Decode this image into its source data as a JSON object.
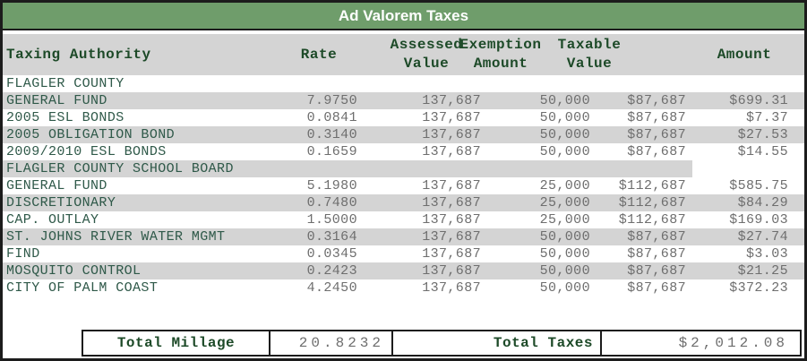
{
  "title": "Ad Valorem Taxes",
  "colors": {
    "title_bar_bg": "#6f9d6b",
    "shaded_row_bg": "#d4d4d4",
    "header_text": "#1d4a28",
    "authority_text": "#2f5949",
    "number_text": "#6e6e6e",
    "border": "#1c1c1c"
  },
  "table": {
    "headers": {
      "authority": "Taxing Authority",
      "rate": "Rate",
      "assessed_line1": "Assessed",
      "assessed_line2": "Value",
      "exemption_line1": "Exemption",
      "exemption_line2": "Amount",
      "taxable_line1": "Taxable",
      "taxable_line2": "Value",
      "amount": "Amount"
    },
    "rows": [
      {
        "type": "section",
        "authority": "FLAGLER COUNTY"
      },
      {
        "type": "data",
        "authority": "GENERAL FUND",
        "rate": "7.9750",
        "assessed": "137,687",
        "exemption": "50,000",
        "taxable": "$87,687",
        "amount": "$699.31"
      },
      {
        "type": "data",
        "authority": "2005 ESL BONDS",
        "rate": "0.0841",
        "assessed": "137,687",
        "exemption": "50,000",
        "taxable": "$87,687",
        "amount": "$7.37"
      },
      {
        "type": "data",
        "authority": "2005 OBLIGATION BOND",
        "rate": "0.3140",
        "assessed": "137,687",
        "exemption": "50,000",
        "taxable": "$87,687",
        "amount": "$27.53"
      },
      {
        "type": "data",
        "authority": "2009/2010 ESL BONDS",
        "rate": "0.1659",
        "assessed": "137,687",
        "exemption": "50,000",
        "taxable": "$87,687",
        "amount": "$14.55"
      },
      {
        "type": "section",
        "authority": "FLAGLER COUNTY SCHOOL BOARD"
      },
      {
        "type": "data",
        "authority": "GENERAL FUND",
        "rate": "5.1980",
        "assessed": "137,687",
        "exemption": "25,000",
        "taxable": "$112,687",
        "amount": "$585.75"
      },
      {
        "type": "data",
        "authority": "DISCRETIONARY",
        "rate": "0.7480",
        "assessed": "137,687",
        "exemption": "25,000",
        "taxable": "$112,687",
        "amount": "$84.29"
      },
      {
        "type": "data",
        "authority": "CAP. OUTLAY",
        "rate": "1.5000",
        "assessed": "137,687",
        "exemption": "25,000",
        "taxable": "$112,687",
        "amount": "$169.03"
      },
      {
        "type": "data",
        "authority": "ST. JOHNS RIVER WATER MGMT",
        "rate": "0.3164",
        "assessed": "137,687",
        "exemption": "50,000",
        "taxable": "$87,687",
        "amount": "$27.74"
      },
      {
        "type": "data",
        "authority": "FIND",
        "rate": "0.0345",
        "assessed": "137,687",
        "exemption": "50,000",
        "taxable": "$87,687",
        "amount": "$3.03"
      },
      {
        "type": "data",
        "authority": "MOSQUITO CONTROL",
        "rate": "0.2423",
        "assessed": "137,687",
        "exemption": "50,000",
        "taxable": "$87,687",
        "amount": "$21.25"
      },
      {
        "type": "data",
        "authority": "CITY OF PALM COAST",
        "rate": "4.2450",
        "assessed": "137,687",
        "exemption": "50,000",
        "taxable": "$87,687",
        "amount": "$372.23"
      }
    ]
  },
  "footer": {
    "millage_label": "Total Millage",
    "millage_value": "20.8232",
    "taxes_label": "Total Taxes",
    "taxes_value": "$2,012.08"
  }
}
